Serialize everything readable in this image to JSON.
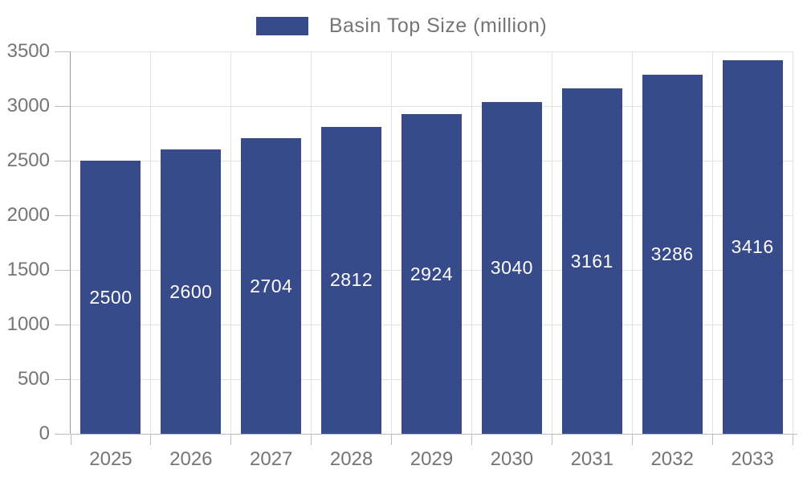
{
  "chart_data": {
    "type": "bar",
    "title": "Basin Top Size (million)",
    "categories": [
      "2025",
      "2026",
      "2027",
      "2028",
      "2029",
      "2030",
      "2031",
      "2032",
      "2033"
    ],
    "series": [
      {
        "name": "Basin Top Size (million)",
        "values": [
          2500,
          2600,
          2704,
          2812,
          2924,
          3040,
          3161,
          3286,
          3416
        ]
      }
    ],
    "bar_value_labels": [
      "2500",
      "2600",
      "2704",
      "2812",
      "2924",
      "3040",
      "3161",
      "3286",
      "3416"
    ],
    "xlabel": "",
    "ylabel": "",
    "ylim": [
      0,
      3500
    ],
    "yticks": [
      0,
      500,
      1000,
      1500,
      2000,
      2500,
      3000,
      3500
    ],
    "grid": true,
    "legend_position": "top-center",
    "colors": {
      "bar": "#374B8A",
      "bar_label": "#FFFFFF",
      "axis_text": "#757575",
      "grid": "#E2E2E2",
      "y_axis_line": "#999999",
      "x_axis_line": "#B3BAC6",
      "tick": "#B9BFCA"
    }
  }
}
